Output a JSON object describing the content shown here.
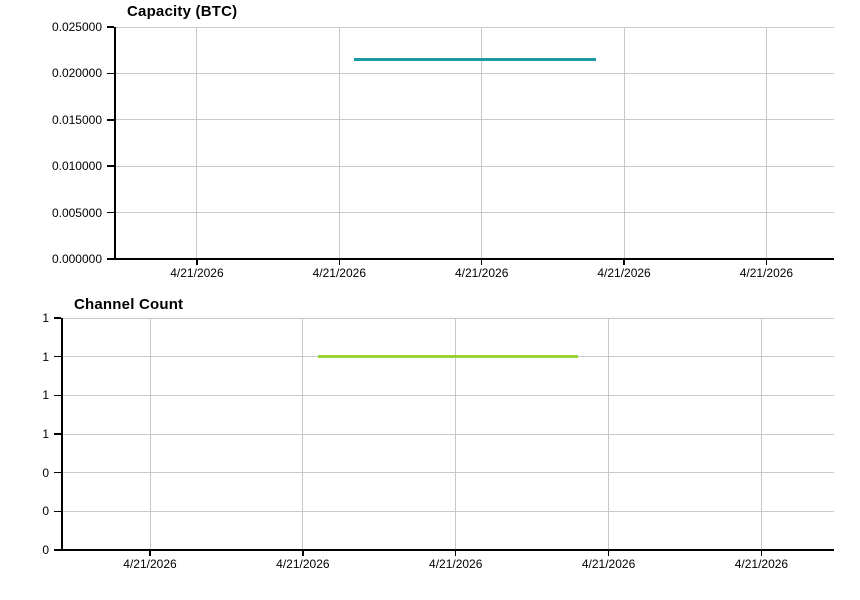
{
  "colors": {
    "background": "#ffffff",
    "axis": "#000000",
    "grid": "#c9c9c9",
    "text": "#000000",
    "capacity_line": "#1b9aa1",
    "channel_count_line": "#9ad335"
  },
  "chart_data": [
    {
      "type": "line",
      "title": "Capacity (BTC)",
      "xlabel": "",
      "ylabel": "",
      "ylim": [
        0,
        0.025
      ],
      "y_tick_labels": [
        "0.025000",
        "0.020000",
        "0.015000",
        "0.010000",
        "0.005000",
        "0.000000"
      ],
      "x_tick_labels": [
        "4/21/2026",
        "4/21/2026",
        "4/21/2026",
        "4/21/2026",
        "4/21/2026"
      ],
      "grid": true,
      "legend": "none",
      "series": [
        {
          "name": "Capacity (BTC)",
          "slug": "capacity-line",
          "color": "#1b9aa1",
          "shape": "constant-horizontal-segment",
          "value": 0.0215,
          "x_span_frac": [
            0.333,
            0.669
          ]
        }
      ]
    },
    {
      "type": "line",
      "title": "Channel Count",
      "xlabel": "",
      "ylabel": "",
      "ylim": [
        0,
        1.2
      ],
      "y_tick_labels": [
        "1",
        "1",
        "1",
        "1",
        "0",
        "0",
        "0"
      ],
      "x_tick_labels": [
        "4/21/2026",
        "4/21/2026",
        "4/21/2026",
        "4/21/2026",
        "4/21/2026"
      ],
      "grid": true,
      "legend": "none",
      "series": [
        {
          "name": "Channel Count",
          "slug": "channel-count-line",
          "color": "#9ad335",
          "shape": "constant-horizontal-segment",
          "value": 1,
          "x_span_frac": [
            0.332,
            0.668
          ]
        }
      ]
    }
  ]
}
